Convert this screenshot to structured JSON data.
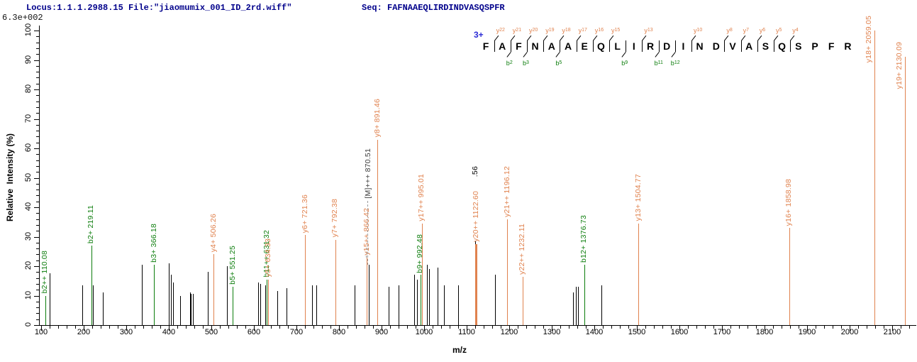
{
  "header": {
    "locus_file": "Locus:1.1.1.2988.15 File:\"jiaomumix_001_ID_2rd.wiff\"",
    "seq_label": "Seq: FAFNAAEQLIRDINDVASQSPFR",
    "scale_label": "6.3e+002"
  },
  "colors": {
    "y_ion": "#e0824e",
    "b_ion": "#0c7d0c",
    "unassigned": "#000000",
    "precursor_label": "#3c3c3c",
    "header_blue": "#00008b",
    "charge_blue": "#2b2bd5",
    "leader_gray": "#9a9a9a"
  },
  "ladder": {
    "charge": "3+",
    "residues": [
      "F",
      "A",
      "F",
      "N",
      "A",
      "A",
      "E",
      "Q",
      "L",
      "I",
      "R",
      "D",
      "I",
      "N",
      "D",
      "V",
      "A",
      "S",
      "Q",
      "S",
      "P",
      "F",
      "R"
    ],
    "markers": [
      {
        "after": 1,
        "y": "y22"
      },
      {
        "after": 2,
        "y": "y21",
        "b": "b2"
      },
      {
        "after": 3,
        "y": "y20",
        "b": "b3"
      },
      {
        "after": 4,
        "y": "y19"
      },
      {
        "after": 5,
        "y": "y18",
        "b": "b5"
      },
      {
        "after": 6,
        "y": "y17"
      },
      {
        "after": 7,
        "y": "y16"
      },
      {
        "after": 8,
        "y": "y15"
      },
      {
        "after": 9,
        "b": "b9"
      },
      {
        "after": 10,
        "y": "y13"
      },
      {
        "after": 11,
        "b": "b11"
      },
      {
        "after": 12,
        "b": "b12"
      },
      {
        "after": 13,
        "y": "y10"
      },
      {
        "after": 15,
        "y": "y8"
      },
      {
        "after": 16,
        "y": "y7"
      },
      {
        "after": 17,
        "y": "y6"
      },
      {
        "after": 18,
        "y": "y5"
      },
      {
        "after": 19,
        "y": "y4"
      }
    ]
  },
  "axes": {
    "x": {
      "label": "m/z",
      "min": 100,
      "max": 2100,
      "major_step": 100,
      "minor_step": 20,
      "tick_labels": [
        100,
        200,
        300,
        400,
        500,
        600,
        700,
        800,
        900,
        1000,
        1100,
        1200,
        1300,
        1400,
        1500,
        1600,
        1700,
        1800,
        1900,
        2000,
        2100
      ]
    },
    "y": {
      "label": "Relative  Intensity (%)",
      "min": 0,
      "max": 100,
      "major_step": 10,
      "minor_step": 2,
      "tick_labels": [
        0,
        10,
        20,
        30,
        40,
        50,
        60,
        70,
        80,
        90,
        100
      ]
    }
  },
  "chart_data": {
    "type": "ms2_spectrum_bar",
    "title": "",
    "xlabel": "m/z",
    "ylabel": "Relative  Intensity (%)",
    "xlim": [
      95,
      2155
    ],
    "ylim": [
      0,
      100
    ],
    "intensity_scale": "6.3e+002",
    "peaks": [
      {
        "mz": 110.08,
        "intensity": 10,
        "ion": "b",
        "label": "b2++ 110.08"
      },
      {
        "mz": 121,
        "intensity": 17.5,
        "ion": "unassigned"
      },
      {
        "mz": 197,
        "intensity": 13.5,
        "ion": "unassigned"
      },
      {
        "mz": 219.11,
        "intensity": 27,
        "ion": "b",
        "label": "b2+ 219.11"
      },
      {
        "mz": 223,
        "intensity": 13.5,
        "ion": "unassigned"
      },
      {
        "mz": 246,
        "intensity": 11,
        "ion": "unassigned"
      },
      {
        "mz": 337,
        "intensity": 20.5,
        "ion": "unassigned"
      },
      {
        "mz": 366.18,
        "intensity": 20.5,
        "ion": "b",
        "label": "b3+ 366.18"
      },
      {
        "mz": 400,
        "intensity": 21,
        "ion": "unassigned"
      },
      {
        "mz": 406,
        "intensity": 17,
        "ion": "unassigned"
      },
      {
        "mz": 410,
        "intensity": 14.5,
        "ion": "unassigned"
      },
      {
        "mz": 428,
        "intensity": 10,
        "ion": "unassigned"
      },
      {
        "mz": 450,
        "intensity": 11,
        "ion": "unassigned"
      },
      {
        "mz": 453,
        "intensity": 10.5,
        "ion": "unassigned"
      },
      {
        "mz": 458,
        "intensity": 10.5,
        "ion": "unassigned"
      },
      {
        "mz": 492,
        "intensity": 18,
        "ion": "unassigned"
      },
      {
        "mz": 506.26,
        "intensity": 24,
        "ion": "y",
        "label": "y4+ 506.26"
      },
      {
        "mz": 538,
        "intensity": 20,
        "ion": "unassigned"
      },
      {
        "mz": 551.25,
        "intensity": 13,
        "ion": "b",
        "label": "b5+ 551.25"
      },
      {
        "mz": 610,
        "intensity": 14.5,
        "ion": "unassigned"
      },
      {
        "mz": 615,
        "intensity": 14,
        "ion": "unassigned"
      },
      {
        "mz": 628,
        "intensity": 13.5,
        "ion": "unassigned"
      },
      {
        "mz": 631.32,
        "intensity": 15.5,
        "ion": "b",
        "label": "b11++ 631.32"
      },
      {
        "mz": 634.33,
        "intensity": 15.5,
        "ion": "y",
        "label": "y5+ 634.33"
      },
      {
        "mz": 656,
        "intensity": 11.5,
        "ion": "unassigned"
      },
      {
        "mz": 678,
        "intensity": 12.5,
        "ion": "unassigned"
      },
      {
        "mz": 721.36,
        "intensity": 30.5,
        "ion": "y",
        "label": "y6+ 721.36"
      },
      {
        "mz": 737,
        "intensity": 13.5,
        "ion": "unassigned"
      },
      {
        "mz": 748,
        "intensity": 13.5,
        "ion": "unassigned"
      },
      {
        "mz": 792.38,
        "intensity": 29,
        "ion": "y",
        "label": "y7+ 792.38"
      },
      {
        "mz": 838,
        "intensity": 13.5,
        "ion": "unassigned"
      },
      {
        "mz": 866.42,
        "intensity": 23,
        "ion": "y",
        "label": "y15++ 866.42",
        "leader": 14
      },
      {
        "mz": 870.51,
        "intensity": 20.5,
        "ion": "precursor",
        "label": "[M]+++ 870.51",
        "label_dy": 90,
        "leader": 90
      },
      {
        "mz": 891.46,
        "intensity": 63,
        "ion": "y",
        "label": "y8+ 891.46"
      },
      {
        "mz": 917,
        "intensity": 13,
        "ion": "unassigned"
      },
      {
        "mz": 941,
        "intensity": 13.5,
        "ion": "unassigned"
      },
      {
        "mz": 978,
        "intensity": 17,
        "ion": "unassigned"
      },
      {
        "mz": 984,
        "intensity": 15.5,
        "ion": "unassigned"
      },
      {
        "mz": 992.48,
        "intensity": 17,
        "ion": "b",
        "label": "b9+ 992.48"
      },
      {
        "mz": 995.01,
        "intensity": 34.5,
        "ion": "y",
        "label": "y17++ 995.01"
      },
      {
        "mz": 1008,
        "intensity": 20.5,
        "ion": "unassigned"
      },
      {
        "mz": 1013,
        "intensity": 19,
        "ion": "unassigned"
      },
      {
        "mz": 1032,
        "intensity": 19.5,
        "ion": "unassigned"
      },
      {
        "mz": 1048,
        "intensity": 13.5,
        "ion": "unassigned"
      },
      {
        "mz": 1080,
        "intensity": 13.5,
        "ion": "unassigned"
      },
      {
        "mz": 1121.5,
        "intensity": 28.5,
        "ion": "unassigned",
        "label": ".56",
        "label_dy": 88
      },
      {
        "mz": 1122.6,
        "intensity": 27.5,
        "ion": "y",
        "label": "y20++ 1122.60",
        "width": 3
      },
      {
        "mz": 1167,
        "intensity": 17,
        "ion": "unassigned"
      },
      {
        "mz": 1196.12,
        "intensity": 36,
        "ion": "y",
        "label": "y21++ 1196.12"
      },
      {
        "mz": 1232.11,
        "intensity": 16.5,
        "ion": "y",
        "label": "y22++ 1232.11"
      },
      {
        "mz": 1350,
        "intensity": 11,
        "ion": "unassigned"
      },
      {
        "mz": 1357,
        "intensity": 13,
        "ion": "unassigned"
      },
      {
        "mz": 1363,
        "intensity": 13,
        "ion": "unassigned"
      },
      {
        "mz": 1376.73,
        "intensity": 20.5,
        "ion": "b",
        "label": "b12+ 1376.73"
      },
      {
        "mz": 1417,
        "intensity": 13.5,
        "ion": "unassigned"
      },
      {
        "mz": 1504.77,
        "intensity": 34.5,
        "ion": "y",
        "label": "y13+ 1504.77"
      },
      {
        "mz": 1858.98,
        "intensity": 33,
        "ion": "y",
        "label": "y16+ 1858.98"
      },
      {
        "mz": 2059.05,
        "intensity": 100,
        "ion": "y",
        "label": "y18+ 2059.05",
        "label_drop": true
      },
      {
        "mz": 2130.09,
        "intensity": 91,
        "ion": "y",
        "label": "y19+ 2130.09",
        "label_drop": true
      }
    ]
  }
}
